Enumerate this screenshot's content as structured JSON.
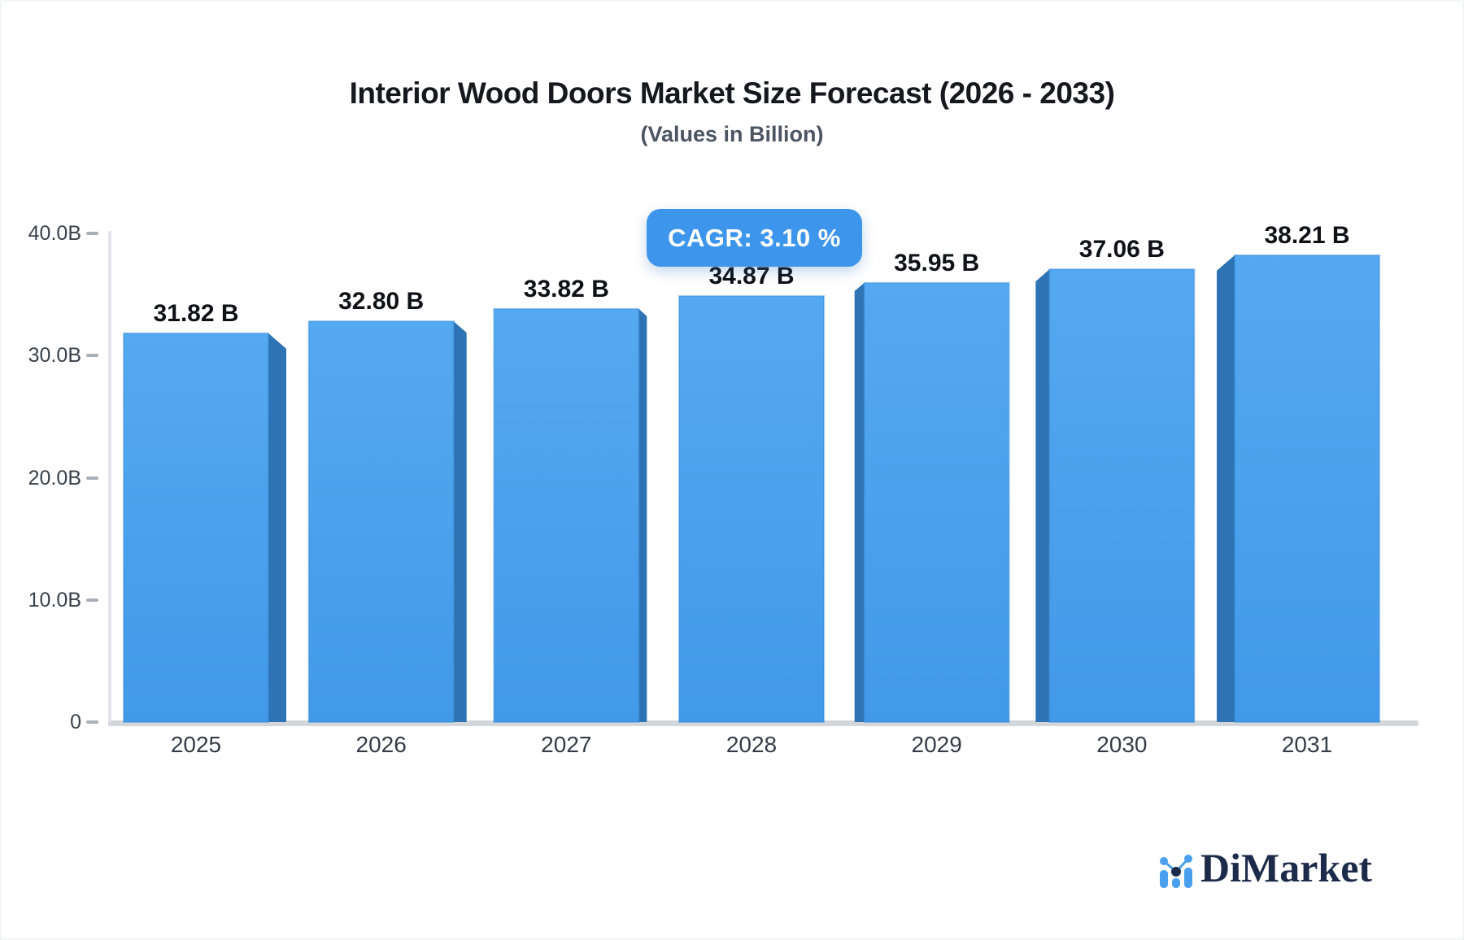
{
  "header": {
    "title": "Interior Wood Doors Market Size Forecast (2026 - 2033)",
    "subtitle": "(Values in Billion)"
  },
  "badge": {
    "label": "CAGR: 3.10 %"
  },
  "logo": {
    "name": "DiMarket",
    "icon": "mini-bar-chart-icon"
  },
  "colors": {
    "bar_face_top": "#55a9f0",
    "bar_face_bottom": "#4299e8",
    "bar_edge": "#3489d8",
    "bar_side": "#2e74b4",
    "badge_bg": "#3e96ec",
    "axis_line": "#e0e3e7",
    "baseline": "#d3d7dc",
    "tick_dash": "#a9afb8",
    "tick_label": "#39414b",
    "x_label": "#343c47",
    "value_label": "#0e1116",
    "logo_navy": "#1c2b4a",
    "logo_blue": "#4aa0ee"
  },
  "chart_data": {
    "type": "bar",
    "style": "3d-bars",
    "title": "Interior Wood Doors Market Size Forecast (2026 - 2033)",
    "subtitle": "(Values in Billion)",
    "cagr_annotation": "CAGR: 3.10 %",
    "categories": [
      "2025",
      "2026",
      "2027",
      "2028",
      "2029",
      "2030",
      "2031"
    ],
    "values": [
      31.82,
      32.8,
      33.82,
      34.87,
      35.95,
      37.06,
      38.21
    ],
    "value_labels": [
      "31.82 B",
      "32.80 B",
      "33.82 B",
      "34.87 B",
      "35.95 B",
      "37.06 B",
      "38.21 B"
    ],
    "xlabel": "",
    "ylabel": "",
    "ylim": [
      0,
      40
    ],
    "yticks": [
      {
        "value": 0,
        "label": "0"
      },
      {
        "value": 10,
        "label": "10.0B"
      },
      {
        "value": 20,
        "label": "20.0B"
      },
      {
        "value": 30,
        "label": "30.0B"
      },
      {
        "value": 40,
        "label": "40.0B"
      }
    ],
    "grid": false,
    "legend": false
  }
}
